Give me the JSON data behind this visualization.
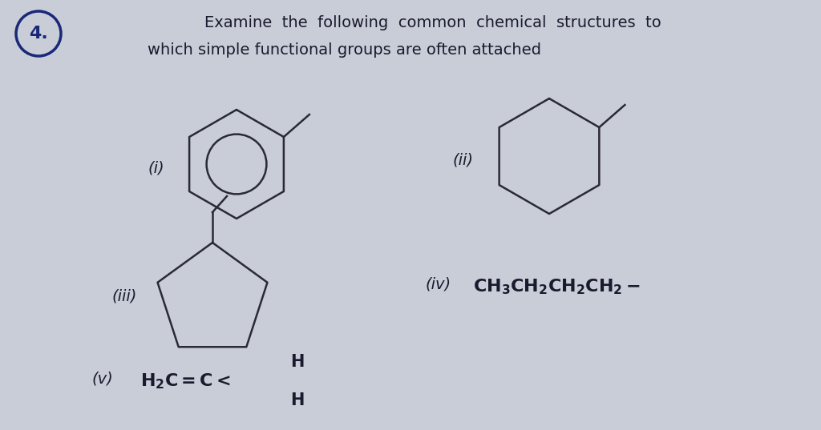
{
  "title_number": "4.",
  "title_text_line1": "Examine  the  following  common  chemical  structures  to",
  "title_text_line2": "which simple functional groups are often attached",
  "background_color": "#c8cdd8",
  "text_color": "#1a1a2e",
  "draw_color": "#2a2a35",
  "figure_width": 10.24,
  "figure_height": 5.37,
  "dpi": 100,
  "circle_color": "#1a2878",
  "labels": {
    "i": "(i)",
    "ii": "(ii)",
    "iii": "(iii)",
    "iv": "(iv)",
    "v": "(v)"
  }
}
